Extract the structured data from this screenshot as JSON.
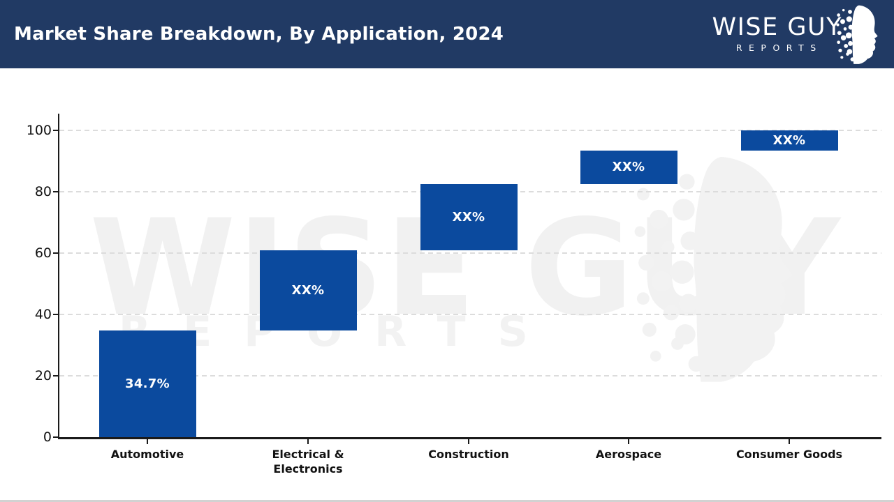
{
  "header": {
    "title": "Market Share Breakdown, By Application, 2024",
    "logo": {
      "line1": "WISE GUY",
      "line2": "REPORTS"
    }
  },
  "watermark": {
    "line1": "WISE GUY",
    "line2": "REPORTS"
  },
  "colors": {
    "header_bg": "#213a64",
    "bar": "#0b4a9e",
    "gridline": "#dcdcdc",
    "axis": "#1a1a1a",
    "watermark": "#f1f1f1",
    "bar_label_text": "#ffffff"
  },
  "chart_data": {
    "type": "bar",
    "subtype": "waterfall-segments",
    "title": "Market Share Breakdown, By Application, 2024",
    "xlabel": "",
    "ylabel": "",
    "ylim": [
      0,
      105
    ],
    "yticks": [
      0,
      20,
      40,
      60,
      80,
      100
    ],
    "grid": "horizontal-dashed",
    "legend": "none",
    "categories": [
      "Automotive",
      "Electrical &\nElectronics",
      "Construction",
      "Aerospace",
      "Consumer Goods"
    ],
    "bars": [
      {
        "category": "Automotive",
        "label": "34.7%",
        "start": 0,
        "end": 34.7
      },
      {
        "category": "Electrical & Electronics",
        "label": "XX%",
        "start": 34.7,
        "end": 61
      },
      {
        "category": "Construction",
        "label": "XX%",
        "start": 61,
        "end": 82.5
      },
      {
        "category": "Aerospace",
        "label": "XX%",
        "start": 82.5,
        "end": 93.5
      },
      {
        "category": "Consumer Goods",
        "label": "XX%",
        "start": 93.5,
        "end": 100
      }
    ]
  }
}
